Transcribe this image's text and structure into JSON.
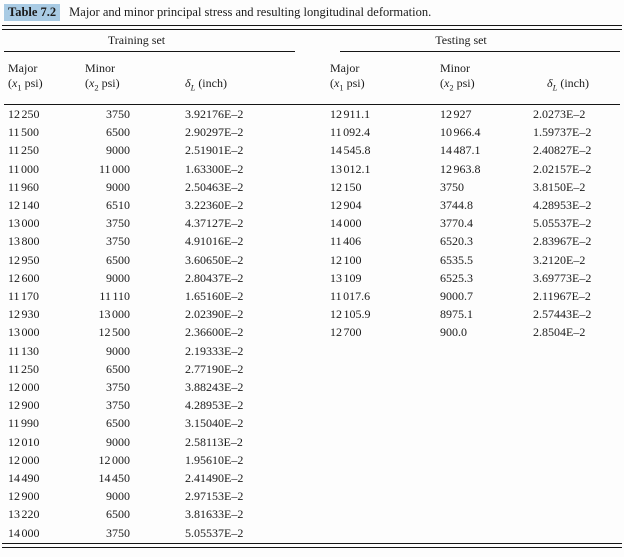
{
  "page": {
    "background": "#fdfdfd",
    "text_color": "#1b1b1b",
    "rule_color": "#151515",
    "highlight_color": "#a9cbe4"
  },
  "title": {
    "label": "Table 7.2",
    "text": "Major and minor principal stress and resulting longitudinal deformation."
  },
  "spanners": {
    "training": "Training set",
    "testing": "Testing set"
  },
  "headers": {
    "major": {
      "line1": "Major",
      "open": "(",
      "var": "x",
      "sub": "1",
      "rest": " psi)"
    },
    "minor": {
      "line1": "Minor",
      "open": "(",
      "var": "x",
      "sub": "2",
      "rest": " psi)"
    },
    "delta": {
      "var": "δ",
      "sub": "L",
      "rest": " (inch)"
    }
  },
  "training_rows": [
    [
      "12 250",
      "3750",
      "3.92176E–2"
    ],
    [
      "11 500",
      "6500",
      "2.90297E–2"
    ],
    [
      "11 250",
      "9000",
      "2.51901E–2"
    ],
    [
      "11 000",
      "11 000",
      "1.63300E–2"
    ],
    [
      "11 960",
      "9000",
      "2.50463E–2"
    ],
    [
      "12 140",
      "6510",
      "3.22360E–2"
    ],
    [
      "13 000",
      "3750",
      "4.37127E–2"
    ],
    [
      "13 800",
      "3750",
      "4.91016E–2"
    ],
    [
      "12 950",
      "6500",
      "3.60650E–2"
    ],
    [
      "12 600",
      "9000",
      "2.80437E–2"
    ],
    [
      "11 170",
      "11 110",
      "1.65160E–2"
    ],
    [
      "12 930",
      "13 000",
      "2.02390E–2"
    ],
    [
      "13 000",
      "12 500",
      "2.36600E–2"
    ],
    [
      "11 130",
      "9000",
      "2.19333E–2"
    ],
    [
      "11 250",
      "6500",
      "2.77190E–2"
    ],
    [
      "12 000",
      "3750",
      "3.88243E–2"
    ],
    [
      "12 900",
      "3750",
      "4.28953E–2"
    ],
    [
      "11 990",
      "6500",
      "3.15040E–2"
    ],
    [
      "12 010",
      "9000",
      "2.58113E–2"
    ],
    [
      "12 000",
      "12 000",
      "1.95610E–2"
    ],
    [
      "14 490",
      "14 450",
      "2.41490E–2"
    ],
    [
      "12 900",
      "9000",
      "2.97153E–2"
    ],
    [
      "13 220",
      "6500",
      "3.81633E–2"
    ],
    [
      "14 000",
      "3750",
      "5.05537E–2"
    ]
  ],
  "testing_rows": [
    [
      "12 911.1",
      "12 927",
      "2.0273E–2"
    ],
    [
      "11 092.4",
      "10 966.4",
      "1.59737E–2"
    ],
    [
      "14 545.8",
      "14 487.1",
      "2.40827E–2"
    ],
    [
      "13 012.1",
      "12 963.8",
      "2.02157E–2"
    ],
    [
      "12 150",
      "3750",
      "3.8150E–2"
    ],
    [
      "12 904",
      "3744.8",
      "4.28953E–2"
    ],
    [
      "14 000",
      "3770.4",
      "5.05537E–2"
    ],
    [
      "11 406",
      "6520.3",
      "2.83967E–2"
    ],
    [
      "12 100",
      "6535.5",
      "3.2120E–2"
    ],
    [
      "13 109",
      "6525.3",
      "3.69773E–2"
    ],
    [
      "11 017.6",
      "9000.7",
      "2.11967E–2"
    ],
    [
      "12 105.9",
      "8975.1",
      "2.57443E–2"
    ],
    [
      "12 700",
      "900.0",
      "2.8504E–2"
    ]
  ]
}
